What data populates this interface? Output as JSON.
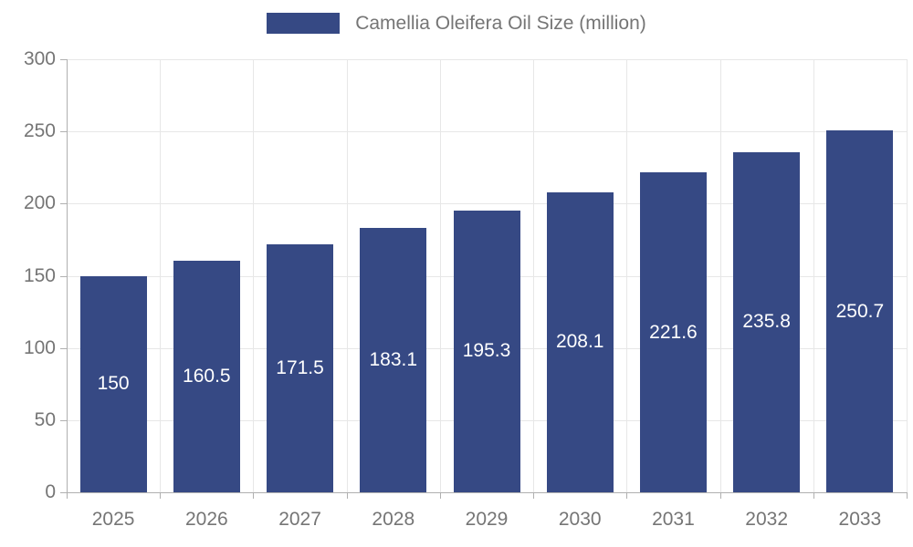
{
  "legend": {
    "label": "Camellia Oleifera Oil Size (million)"
  },
  "chart_data": {
    "type": "bar",
    "title": "",
    "xlabel": "",
    "ylabel": "",
    "categories": [
      "2025",
      "2026",
      "2027",
      "2028",
      "2029",
      "2030",
      "2031",
      "2032",
      "2033"
    ],
    "series": [
      {
        "name": "Camellia Oleifera Oil Size (million)",
        "values": [
          150,
          160.5,
          171.5,
          183.1,
          195.3,
          208.1,
          221.6,
          235.8,
          250.7
        ],
        "value_labels": [
          "150",
          "160.5",
          "171.5",
          "183.1",
          "195.3",
          "208.1",
          "221.6",
          "235.8",
          "250.7"
        ]
      }
    ],
    "ylim": [
      0,
      300
    ],
    "yticks": [
      0,
      50,
      100,
      150,
      200,
      250,
      300
    ],
    "ytick_labels": [
      "0",
      "50",
      "100",
      "150",
      "200",
      "250",
      "300"
    ],
    "grid": true,
    "legend_position": "top-center",
    "colors": {
      "bar": "#364984",
      "value_label": "#ffffff",
      "grid": "#e7e7e7",
      "axis": "#b0b0b0",
      "tick_text": "#757575",
      "background": "#ffffff"
    }
  }
}
